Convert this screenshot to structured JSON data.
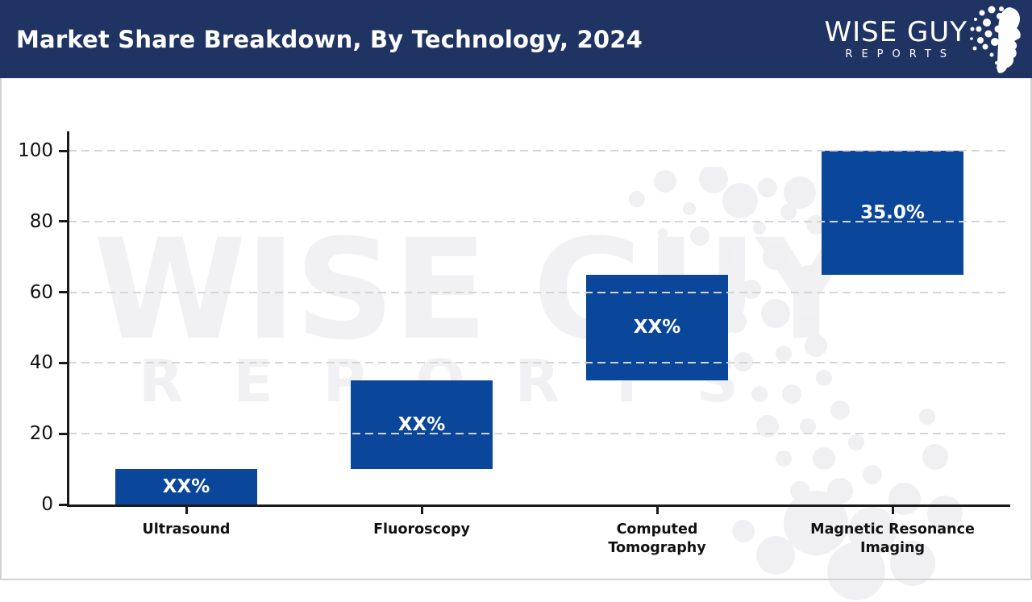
{
  "header": {
    "title": "Market Share Breakdown, By Technology, 2024",
    "logo": {
      "wordmark": "WISE GUY",
      "subtext": "REPORTS"
    }
  },
  "watermark": {
    "wordmark": "WISE GUY",
    "subtext": "REPORTS"
  },
  "colors": {
    "header_bg": "#1f3463",
    "bar_fill": "#0a4699",
    "grid": "#d6d6d6",
    "axis": "#1a1a1a",
    "watermark": "#f1f1f4"
  },
  "chart_data": {
    "type": "bar",
    "subtype": "floating-waterfall",
    "title": "Market Share Breakdown, By Technology, 2024",
    "categories": [
      "Ultrasound",
      "Fluoroscopy",
      "Computed Tomography",
      "Magnetic Resonance Imaging"
    ],
    "category_label_lines": [
      "Ultrasound",
      "Fluoroscopy",
      "Computed\nTomography",
      "Magnetic Resonance\nImaging"
    ],
    "series": [
      {
        "name": "Market Share",
        "segments": [
          {
            "from": 0,
            "to": 10
          },
          {
            "from": 10,
            "to": 35
          },
          {
            "from": 35,
            "to": 65
          },
          {
            "from": 65,
            "to": 100
          }
        ],
        "values": [
          10,
          25,
          30,
          35
        ]
      }
    ],
    "bar_labels": [
      "XX%",
      "XX%",
      "XX%",
      "35.0%"
    ],
    "xlabel": "",
    "ylabel": "",
    "ylim": [
      0,
      100
    ],
    "yticks": [
      0,
      20,
      40,
      60,
      80,
      100
    ],
    "grid": "horizontal-dashed",
    "legend": "none"
  }
}
